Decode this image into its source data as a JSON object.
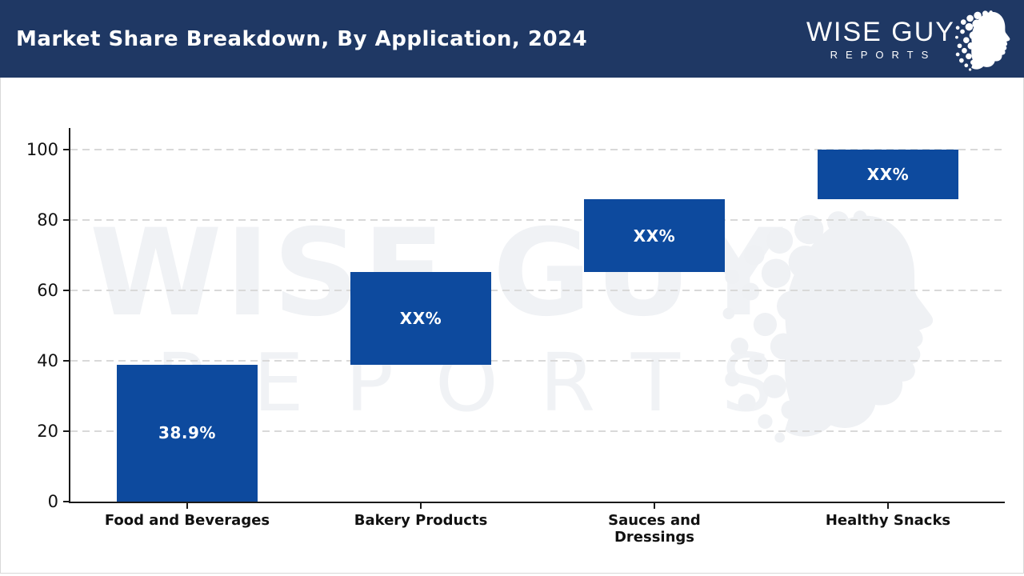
{
  "header": {
    "title": "Market Share Breakdown, By Application, 2024",
    "bg_color": "#1f3864",
    "brand": {
      "name": "WISE GUY",
      "subname": "REPORTS"
    }
  },
  "watermark": {
    "line1": "WISE GUY",
    "line2": "REPORTS"
  },
  "chart_data": {
    "type": "bar",
    "variant": "waterfall",
    "title": "Market Share Breakdown, By Application, 2024",
    "categories": [
      "Food and Beverages",
      "Bakery Products",
      "Sauces and Dressings",
      "Healthy Snacks"
    ],
    "bars": [
      {
        "category": "Food and Beverages",
        "start": 0,
        "end": 38.9,
        "label": "38.9%"
      },
      {
        "category": "Bakery Products",
        "start": 38.9,
        "end": 65.2,
        "label": "XX%"
      },
      {
        "category": "Sauces and Dressings",
        "start": 65.2,
        "end": 85.9,
        "label": "XX%"
      },
      {
        "category": "Healthy Snacks",
        "start": 85.9,
        "end": 100,
        "label": "XX%"
      }
    ],
    "xlabel": "",
    "ylabel": "",
    "ylim": [
      0,
      100
    ],
    "yticks": [
      0,
      20,
      40,
      60,
      80,
      100
    ],
    "grid": {
      "axis": "y",
      "style": "dashed",
      "color": "#d9d9d9"
    },
    "legend_position": "none",
    "bar_color": "#0d4a9e",
    "bar_label_color": "#ffffff",
    "axis_color": "#1a1a1a"
  }
}
